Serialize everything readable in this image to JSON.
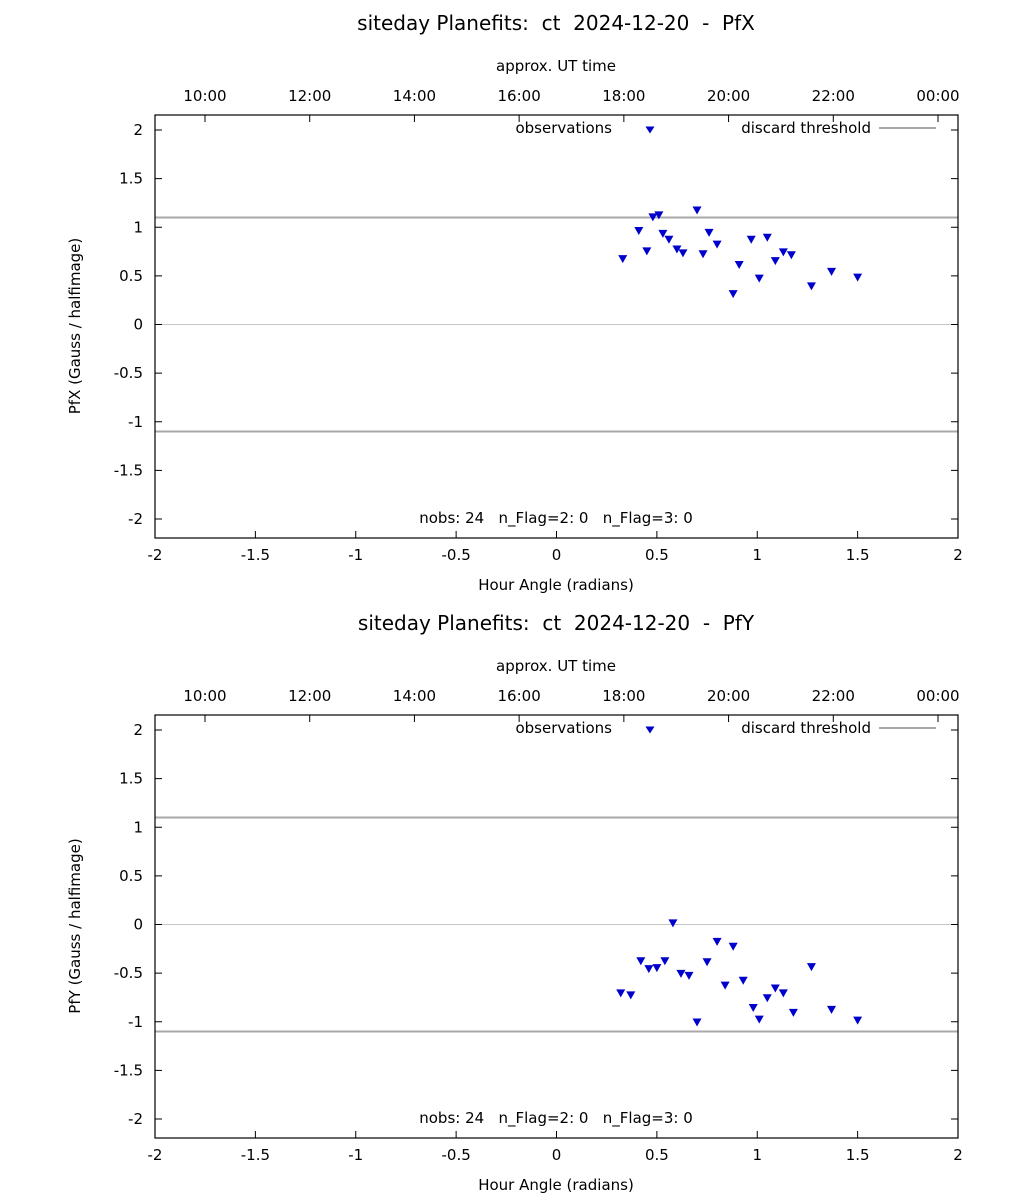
{
  "page": {
    "background": "#ffffff"
  },
  "chart_data": [
    {
      "type": "scatter",
      "title": "siteday Planefits:  ct  2024-12-20  -  PfX",
      "x2label": "approx. UT time",
      "x2_ticks": [
        "10:00",
        "12:00",
        "14:00",
        "16:00",
        "18:00",
        "20:00",
        "22:00",
        "00:00"
      ],
      "ylabel": "PfX (Gauss / halfimage)",
      "xlabel": "Hour Angle (radians)",
      "x_ticks": [
        -2,
        -1.5,
        -1,
        -0.5,
        0,
        0.5,
        1,
        1.5,
        2
      ],
      "y_ticks": [
        2,
        1.5,
        1,
        0.5,
        0,
        -0.5,
        -1,
        -1.5,
        -2
      ],
      "xlim": [
        -2,
        2
      ],
      "ylim": [
        -2.2,
        2.15
      ],
      "grid": false,
      "legend_position": "top-inside",
      "series": [
        {
          "name": "observations",
          "marker": "triangle-down",
          "color": "#0000cc",
          "points": [
            [
              0.33,
              0.68
            ],
            [
              0.41,
              0.97
            ],
            [
              0.45,
              0.76
            ],
            [
              0.48,
              1.11
            ],
            [
              0.51,
              1.13
            ],
            [
              0.53,
              0.94
            ],
            [
              0.56,
              0.88
            ],
            [
              0.6,
              0.78
            ],
            [
              0.63,
              0.74
            ],
            [
              0.7,
              1.18
            ],
            [
              0.73,
              0.73
            ],
            [
              0.76,
              0.95
            ],
            [
              0.8,
              0.83
            ],
            [
              0.88,
              0.32
            ],
            [
              0.91,
              0.62
            ],
            [
              0.97,
              0.88
            ],
            [
              1.01,
              0.48
            ],
            [
              1.05,
              0.9
            ],
            [
              1.09,
              0.66
            ],
            [
              1.13,
              0.75
            ],
            [
              1.17,
              0.72
            ],
            [
              1.27,
              0.4
            ],
            [
              1.37,
              0.55
            ],
            [
              1.5,
              0.49
            ]
          ]
        }
      ],
      "thresholds": {
        "name": "discard threshold",
        "color": "#a8a8a8",
        "values": [
          1.1,
          -1.1
        ]
      },
      "zero_line": {
        "color": "#c6c6c6",
        "value": 0
      },
      "annotation": "nobs: 24   n_Flag=2: 0   n_Flag=3: 0"
    },
    {
      "type": "scatter",
      "title": "siteday Planefits:  ct  2024-12-20  -  PfY",
      "x2label": "approx. UT time",
      "x2_ticks": [
        "10:00",
        "12:00",
        "14:00",
        "16:00",
        "18:00",
        "20:00",
        "22:00",
        "00:00"
      ],
      "ylabel": "PfY (Gauss / halfimage)",
      "xlabel": "Hour Angle (radians)",
      "x_ticks": [
        -2,
        -1.5,
        -1,
        -0.5,
        0,
        0.5,
        1,
        1.5,
        2
      ],
      "y_ticks": [
        2,
        1.5,
        1,
        0.5,
        0,
        -0.5,
        -1,
        -1.5,
        -2
      ],
      "xlim": [
        -2,
        2
      ],
      "ylim": [
        -2.2,
        2.15
      ],
      "grid": false,
      "legend_position": "top-inside",
      "series": [
        {
          "name": "observations",
          "marker": "triangle-down",
          "color": "#0000cc",
          "points": [
            [
              0.32,
              -0.7
            ],
            [
              0.37,
              -0.72
            ],
            [
              0.42,
              -0.37
            ],
            [
              0.46,
              -0.45
            ],
            [
              0.5,
              -0.44
            ],
            [
              0.54,
              -0.37
            ],
            [
              0.58,
              0.02
            ],
            [
              0.62,
              -0.5
            ],
            [
              0.66,
              -0.52
            ],
            [
              0.7,
              -1.0
            ],
            [
              0.75,
              -0.38
            ],
            [
              0.8,
              -0.17
            ],
            [
              0.84,
              -0.62
            ],
            [
              0.88,
              -0.22
            ],
            [
              0.93,
              -0.57
            ],
            [
              0.98,
              -0.85
            ],
            [
              1.01,
              -0.97
            ],
            [
              1.05,
              -0.75
            ],
            [
              1.09,
              -0.65
            ],
            [
              1.13,
              -0.7
            ],
            [
              1.18,
              -0.9
            ],
            [
              1.27,
              -0.43
            ],
            [
              1.37,
              -0.87
            ],
            [
              1.5,
              -0.98
            ]
          ]
        }
      ],
      "thresholds": {
        "name": "discard threshold",
        "color": "#a8a8a8",
        "values": [
          1.1,
          -1.1
        ]
      },
      "zero_line": {
        "color": "#c6c6c6",
        "value": 0
      },
      "annotation": "nobs: 24   n_Flag=2: 0   n_Flag=3: 0"
    }
  ]
}
